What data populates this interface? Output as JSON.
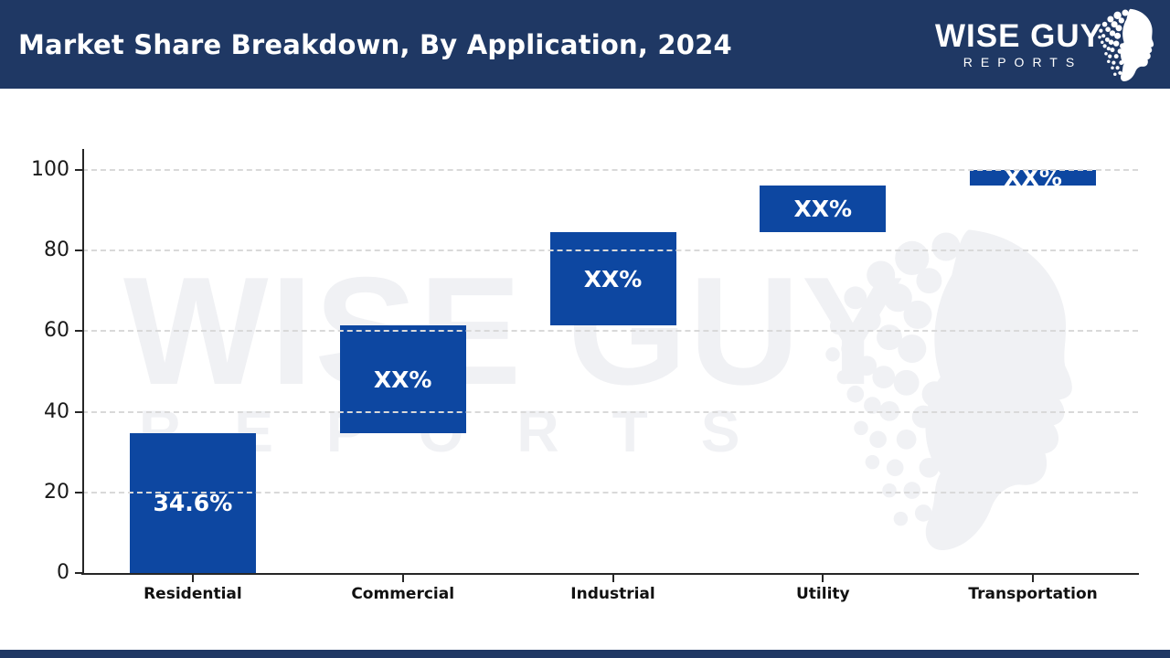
{
  "header": {
    "title": "Market Share Breakdown, By Application, 2024",
    "brand_line1": "WISE GUY",
    "brand_line2": "REPORTS"
  },
  "watermark": {
    "line1": "WISE GUY",
    "line2": "REPORTS"
  },
  "colors": {
    "header_bg": "#1f3864",
    "footer_bg": "#1f3864",
    "bar_fill": "#0d47a1",
    "bar_label": "#ffffff",
    "grid": "#d9d9d9",
    "axis": "#262626",
    "watermark": "#f0f1f4"
  },
  "chart_data": {
    "type": "bar",
    "subtype": "waterfall",
    "title": "Market Share Breakdown, By Application, 2024",
    "xlabel": "",
    "ylabel": "",
    "categories": [
      "Residential",
      "Commercial",
      "Industrial",
      "Utility",
      "Transportation"
    ],
    "segments": [
      {
        "category": "Residential",
        "start": 0,
        "end": 34.6,
        "label": "34.6%"
      },
      {
        "category": "Commercial",
        "start": 34.6,
        "end": 61.4,
        "label": "XX%"
      },
      {
        "category": "Industrial",
        "start": 61.4,
        "end": 84.6,
        "label": "XX%"
      },
      {
        "category": "Utility",
        "start": 84.6,
        "end": 96.1,
        "label": "XX%"
      },
      {
        "category": "Transportation",
        "start": 96.1,
        "end": 100,
        "label": "XX%"
      }
    ],
    "ylim": [
      0,
      100
    ],
    "yticks": [
      0,
      20,
      40,
      60,
      80,
      100
    ],
    "grid": true,
    "legend": false
  }
}
